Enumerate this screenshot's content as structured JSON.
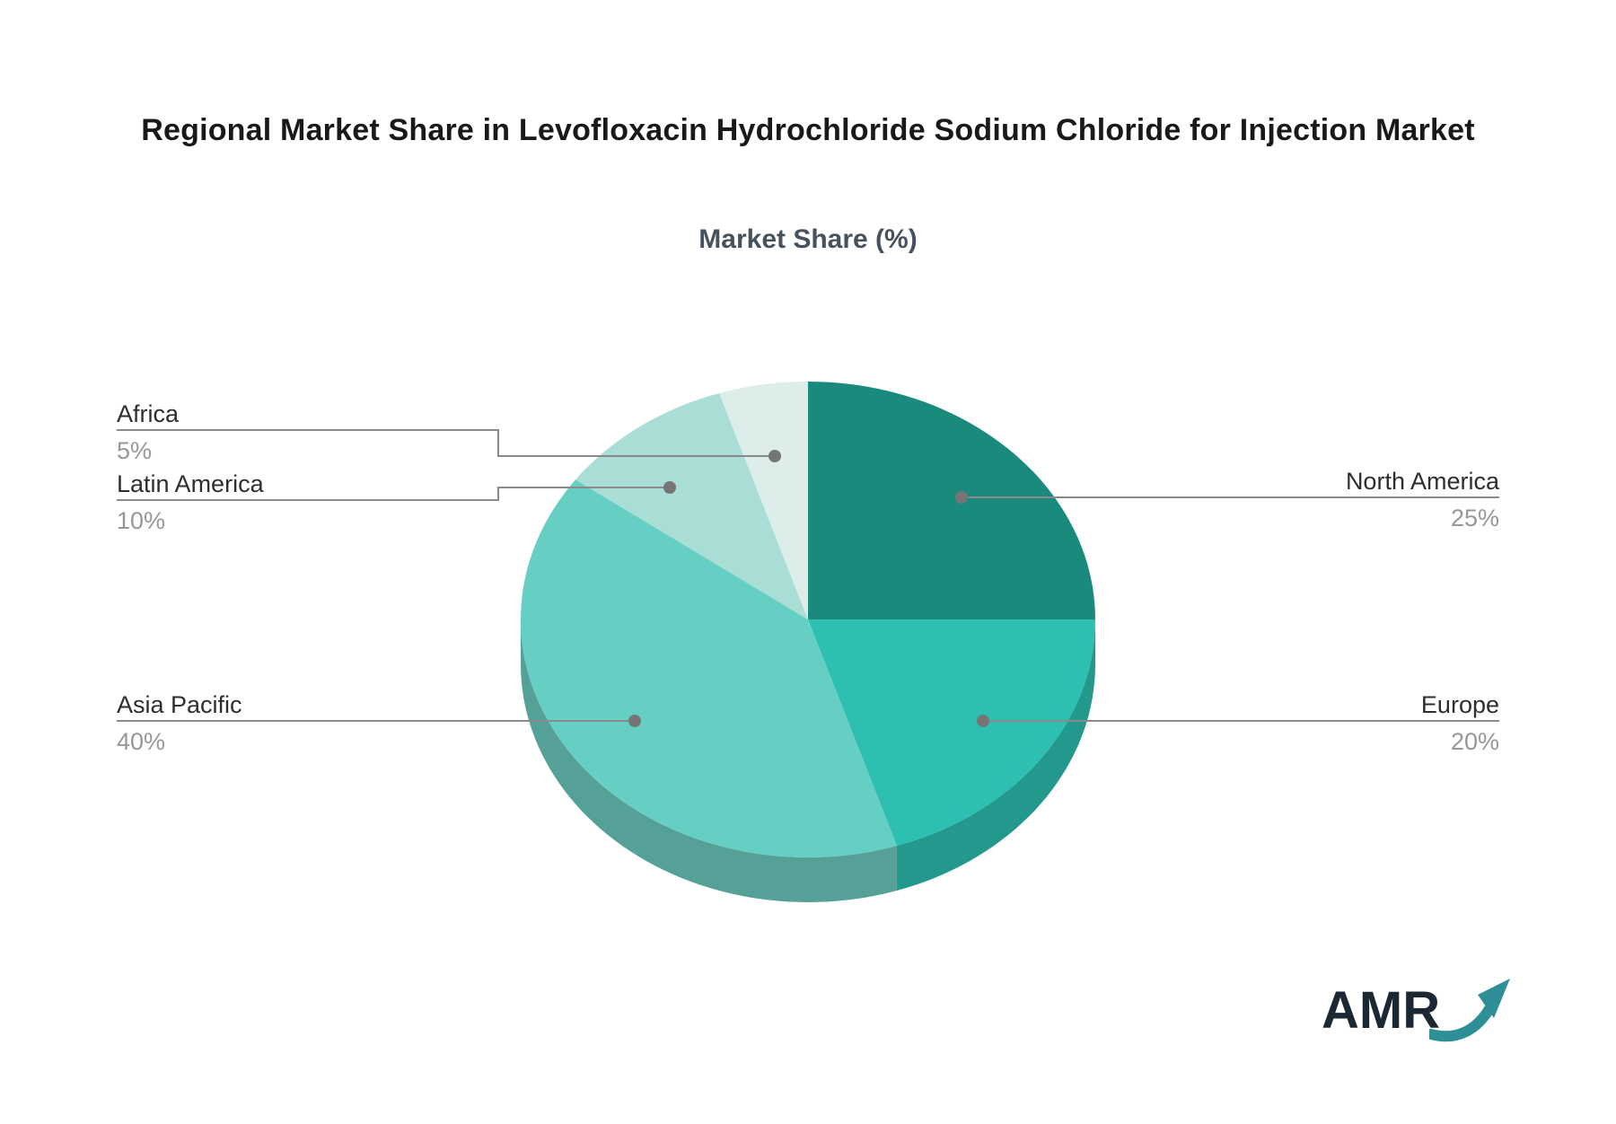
{
  "title": "Regional Market Share in Levofloxacin Hydrochloride Sodium Chloride for Injection Market",
  "subtitle": "Market Share (%)",
  "chart_data": {
    "type": "pie",
    "title": "Regional Market Share in Levofloxacin Hydrochloride Sodium Chloride for Injection Market",
    "subtitle": "Market Share (%)",
    "unit": "%",
    "effect": "3d-depth",
    "start_angle_deg": 0,
    "clockwise": true,
    "legend_position": "callout-labels",
    "slices": [
      {
        "label": "North America",
        "value": 25,
        "pct_label": "25%",
        "color": "#1A8A7D",
        "side_color": "#17796E"
      },
      {
        "label": "Europe",
        "value": 20,
        "pct_label": "20%",
        "color": "#2DBFB2",
        "side_color": "#23988C"
      },
      {
        "label": "Asia Pacific",
        "value": 40,
        "pct_label": "40%",
        "color": "#66CFC4",
        "side_color": "#55A198"
      },
      {
        "label": "Latin America",
        "value": 10,
        "pct_label": "10%",
        "color": "#A9DED6",
        "side_color": "#8FC4BC"
      },
      {
        "label": "Africa",
        "value": 5,
        "pct_label": "5%",
        "color": "#DDEDEA",
        "side_color": "#C2D6D2"
      }
    ]
  },
  "colors": {
    "background": "#FFFFFF",
    "title_text": "#191919",
    "subtitle_text": "#47525E",
    "label_text": "#2E2E2E",
    "percent_text": "#979797",
    "leader_line": "#8A8A8A",
    "leader_dot": "#757575"
  },
  "logo": {
    "text": "AMR",
    "text_color": "#1B2733",
    "arrow_color": "#2E8F96",
    "arrow_icon": "growth-arrow-icon"
  }
}
